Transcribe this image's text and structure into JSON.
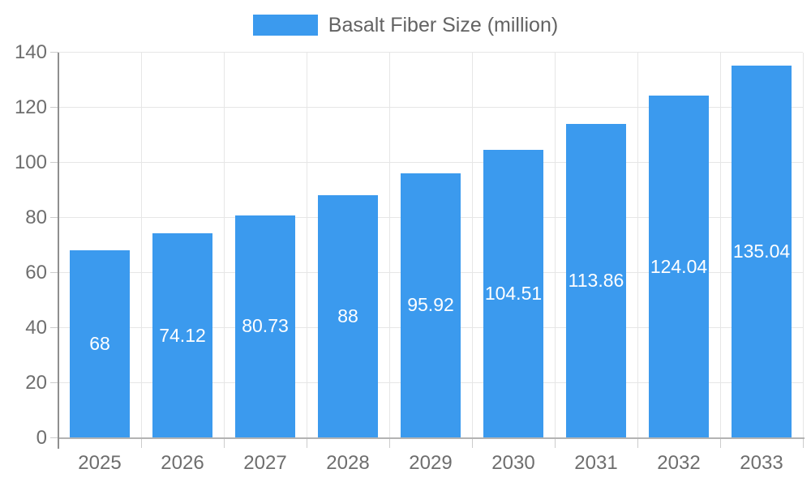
{
  "chart_data": {
    "type": "bar",
    "title": "",
    "categories": [
      "2025",
      "2026",
      "2027",
      "2028",
      "2029",
      "2030",
      "2031",
      "2032",
      "2033"
    ],
    "series": [
      {
        "name": "Basalt Fiber Size (million)",
        "values": [
          68,
          74.12,
          80.73,
          88,
          95.92,
          104.51,
          113.86,
          124.04,
          135.04
        ]
      }
    ],
    "xlabel": "",
    "ylabel": "",
    "ylim": [
      0,
      140
    ],
    "yticks": [
      0,
      20,
      40,
      60,
      80,
      100,
      120,
      140
    ],
    "grid": true,
    "legend_position": "top-center",
    "value_labels_inside_bars": true,
    "colors": {
      "bar": "#3b9aee",
      "grid": "#e6e6e6",
      "axis_line": "#8f8f8f",
      "baseline": "#b3b3b3",
      "tick": "#cccccc",
      "axis_text": "#6e6e6e",
      "legend_text": "#636363",
      "value_text": "#ffffff",
      "background": "#ffffff"
    }
  }
}
